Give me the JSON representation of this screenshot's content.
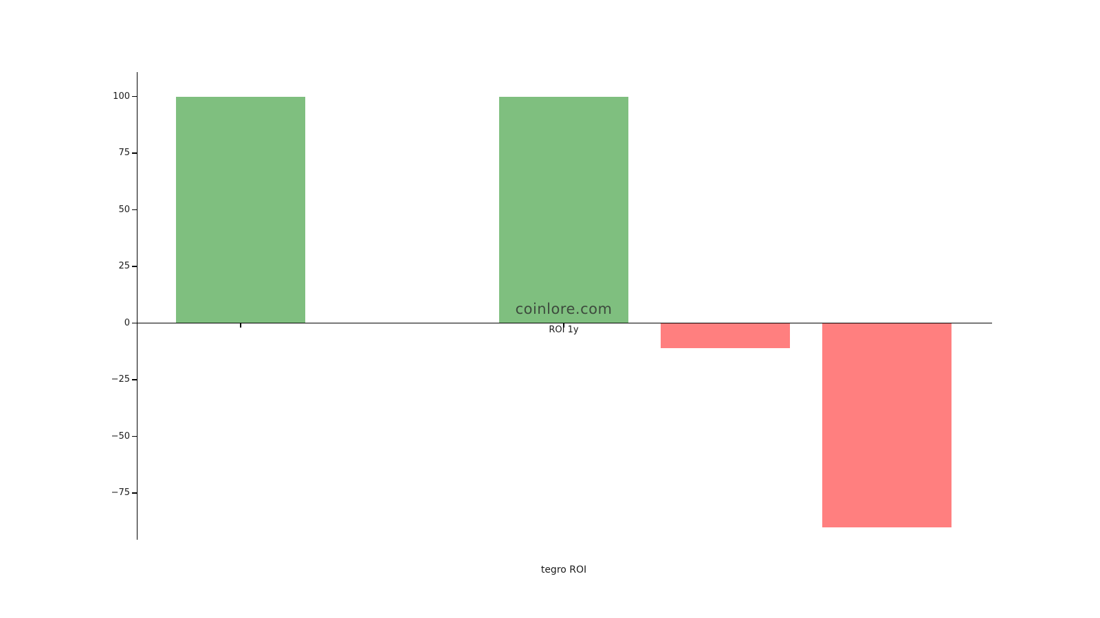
{
  "page": {
    "background": "#ffffff"
  },
  "chart_data": {
    "type": "bar",
    "xlabel": "tegro ROI",
    "watermark": "coinlore.com",
    "categories": [
      "",
      "",
      "ROI 1y",
      "",
      ""
    ],
    "values": [
      100,
      null,
      100,
      -11,
      -90
    ],
    "yticks": [
      100,
      75,
      50,
      25,
      0,
      -25,
      -50,
      -75
    ],
    "ylim": [
      -96,
      111
    ],
    "xticks_shown": [
      {
        "index": 0,
        "label": ""
      },
      {
        "index": 2,
        "label": "ROI 1y"
      }
    ],
    "grid": false,
    "legend": null,
    "colors": {
      "positive": "#7fbf7f",
      "negative": "#ff7f7f",
      "axis": "#000000",
      "tick_text": "#1a1a1a",
      "watermark_text": "#3d4a3d"
    }
  }
}
